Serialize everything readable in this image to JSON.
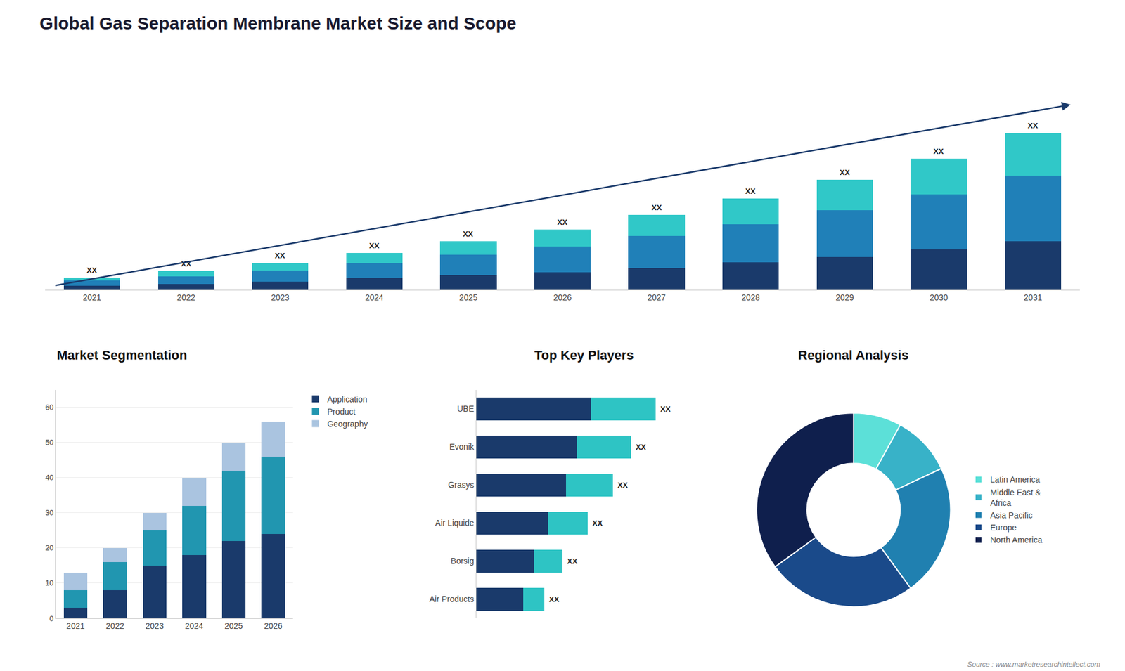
{
  "title": "Global Gas Separation Membrane Market Size and Scope",
  "annotations": [
    {
      "text": "Source : www.marketresearchintellect.com"
    }
  ],
  "chart_data": [
    {
      "type": "bar",
      "stacked": true,
      "categories": [
        "2021",
        "2022",
        "2023",
        "2024",
        "2025",
        "2026",
        "2027",
        "2028",
        "2029",
        "2030",
        "2031"
      ],
      "series": [
        {
          "color": "#1a3a6b",
          "values": [
            1.0,
            1.4,
            2.0,
            2.8,
            3.5,
            4.2,
            5.2,
            6.5,
            7.8,
            9.5,
            11.5
          ]
        },
        {
          "color": "#2080b8",
          "values": [
            1.2,
            1.8,
            2.6,
            3.6,
            4.8,
            6.0,
            7.5,
            9.0,
            11.0,
            13.0,
            15.5
          ]
        },
        {
          "color": "#30c8c8",
          "values": [
            0.8,
            1.2,
            1.8,
            2.4,
            3.2,
            4.0,
            5.0,
            6.0,
            7.2,
            8.5,
            10.0
          ]
        }
      ],
      "ylim": [
        0,
        51.06
      ],
      "tick_labels": "x",
      "grid": false,
      "annotations": [
        {
          "category": "2021",
          "text": "XX"
        },
        {
          "category": "2022",
          "text": "XX"
        },
        {
          "category": "2023",
          "text": "XX"
        },
        {
          "category": "2024",
          "text": "XX"
        },
        {
          "category": "2025",
          "text": "XX"
        },
        {
          "category": "2026",
          "text": "XX"
        },
        {
          "category": "2027",
          "text": "XX"
        },
        {
          "category": "2028",
          "text": "XX"
        },
        {
          "category": "2029",
          "text": "XX"
        },
        {
          "category": "2030",
          "text": "XX"
        },
        {
          "category": "2031",
          "text": "XX"
        }
      ]
    },
    {
      "type": "bar",
      "title": "Market Segmentation",
      "stacked": true,
      "categories": [
        "2021",
        "2022",
        "2023",
        "2024",
        "2025",
        "2026"
      ],
      "series": [
        {
          "name": "Application",
          "color": "#1a3a6b",
          "values": [
            3,
            8,
            15,
            18,
            22,
            24
          ]
        },
        {
          "name": "Product",
          "color": "#2196b0",
          "values": [
            5,
            8,
            10,
            14,
            20,
            22
          ]
        },
        {
          "name": "Geography",
          "color": "#aac4e0",
          "values": [
            5,
            4,
            5,
            8,
            8,
            10
          ]
        }
      ],
      "ylim": [
        0,
        65
      ],
      "yticks": [
        0,
        10,
        20,
        30,
        40,
        50,
        60
      ],
      "grid": true,
      "legend": "upper right"
    },
    {
      "type": "bar",
      "title": "Top Key Players",
      "orientation": "horizontal",
      "stacked": true,
      "categories": [
        "UBE",
        "Evonik",
        "Grasys",
        "Air Liquide",
        "Borsig",
        "Air Products"
      ],
      "series": [
        {
          "color": "#1a3a6b",
          "values": [
            32,
            28,
            25,
            20,
            16,
            13
          ]
        },
        {
          "color": "#2ec4c4",
          "values": [
            18,
            15,
            13,
            11,
            8,
            6
          ]
        }
      ],
      "xlim": [
        0,
        60
      ],
      "tick_labels": "y",
      "grid": false,
      "annotations": [
        {
          "category": "UBE",
          "text": "XX"
        },
        {
          "category": "Evonik",
          "text": "XX"
        },
        {
          "category": "Grasys",
          "text": "XX"
        },
        {
          "category": "Air Liquide",
          "text": "XX"
        },
        {
          "category": "Borsig",
          "text": "XX"
        },
        {
          "category": "Air Products",
          "text": "XX"
        }
      ]
    },
    {
      "type": "pie",
      "title": "Regional Analysis",
      "categories": [
        "Latin America",
        "Middle East &\nAfrica",
        "Asia Pacific",
        "Europe",
        "North America"
      ],
      "values": [
        8,
        10,
        22,
        25,
        35
      ],
      "colors": [
        "#5ce0d8",
        "#38b2c8",
        "#2080b0",
        "#1a4a8a",
        "#0f1f4d"
      ],
      "legend": "right"
    }
  ]
}
